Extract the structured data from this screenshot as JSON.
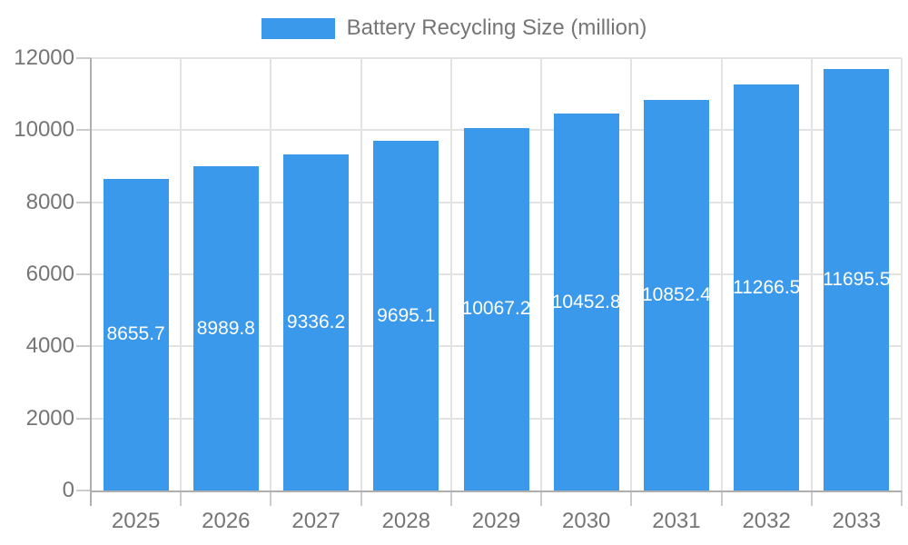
{
  "chart_data": {
    "type": "bar",
    "title": "Battery Recycling Size (million)",
    "legend": {
      "label": "Battery Recycling Size (million)",
      "position": "top"
    },
    "categories": [
      "2025",
      "2026",
      "2027",
      "2028",
      "2029",
      "2030",
      "2031",
      "2032",
      "2033"
    ],
    "values": [
      8655.7,
      8989.8,
      9336.2,
      9695.1,
      10067.2,
      10452.8,
      10852.4,
      11266.5,
      11695.5
    ],
    "value_label_decimals": 1,
    "xlabel": "",
    "ylabel": "",
    "ylim": [
      0,
      12000
    ],
    "yticks": [
      0,
      2000,
      4000,
      6000,
      8000,
      10000,
      12000
    ],
    "grid": true,
    "colors": {
      "bar": "#3B99EC",
      "value_label": "#FFFFFF",
      "axis_text": "#757575",
      "gridline": "#E3E3E3",
      "axis_border": "#AFAFAF",
      "tick": "#CCCCCC"
    }
  }
}
